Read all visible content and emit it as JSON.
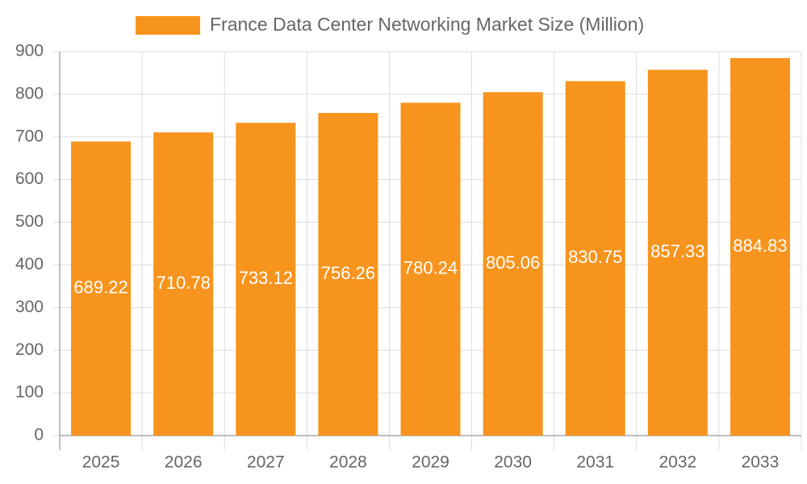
{
  "chart_data": {
    "type": "bar",
    "categories": [
      "2025",
      "2026",
      "2027",
      "2028",
      "2029",
      "2030",
      "2031",
      "2032",
      "2033"
    ],
    "series": [
      {
        "name": "France Data Center Networking Market Size (Million)",
        "color": "#f7941d",
        "values": [
          689.22,
          710.78,
          733.12,
          756.26,
          780.24,
          805.06,
          830.75,
          857.33,
          884.83
        ]
      }
    ],
    "ylim": [
      0,
      900
    ],
    "yticks": [
      0,
      100,
      200,
      300,
      400,
      500,
      600,
      700,
      800,
      900
    ],
    "grid": true,
    "legend": "top"
  }
}
